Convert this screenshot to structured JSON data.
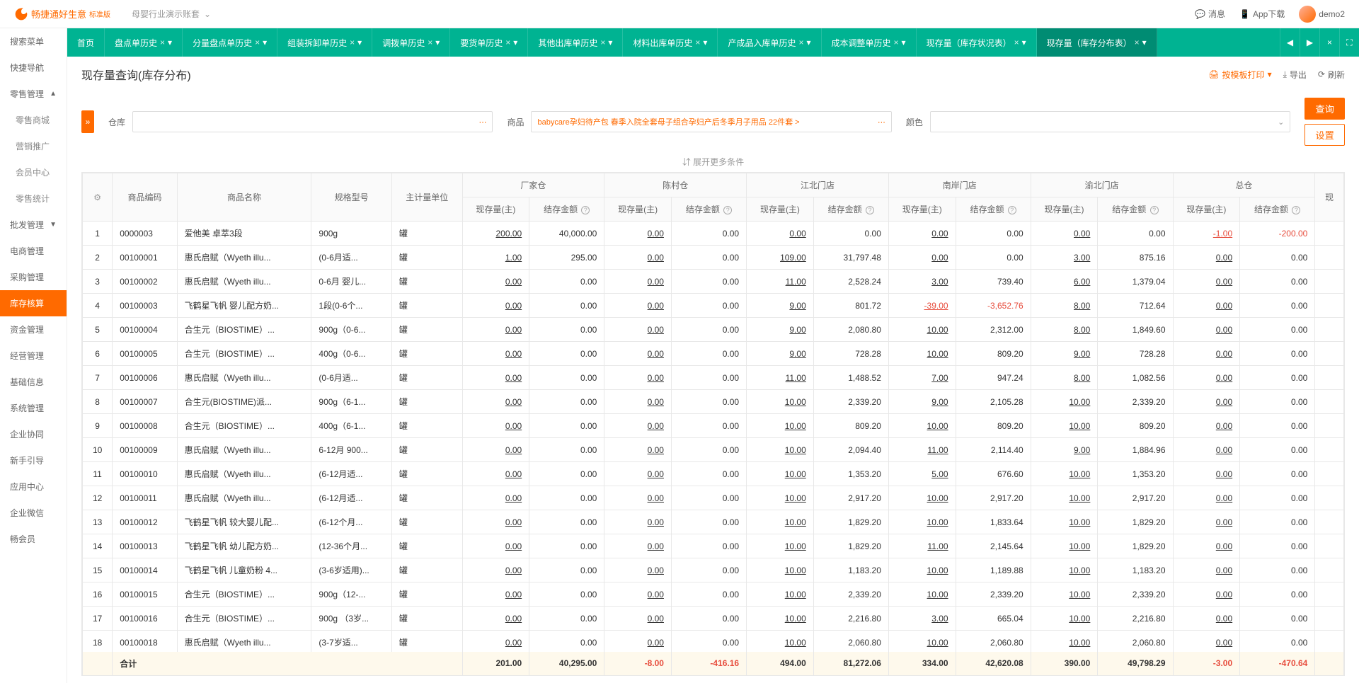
{
  "brand": "畅捷通好生意",
  "version": "标准版",
  "account_selector": "母婴行业演示账套",
  "top_right": {
    "msg": "消息",
    "app": "App下载",
    "user": "demo2"
  },
  "sidebar": [
    {
      "label": "搜索菜单"
    },
    {
      "label": "快捷导航"
    },
    {
      "label": "零售管理",
      "arrow": "▲"
    },
    {
      "label": "零售商城",
      "sub": true
    },
    {
      "label": "营销推广",
      "sub": true
    },
    {
      "label": "会员中心",
      "sub": true
    },
    {
      "label": "零售统计",
      "sub": true
    },
    {
      "label": "批发管理",
      "arrow": "▼"
    },
    {
      "label": "电商管理"
    },
    {
      "label": "采购管理"
    },
    {
      "label": "库存核算",
      "active": true
    },
    {
      "label": "资金管理"
    },
    {
      "label": "经营管理"
    },
    {
      "label": "基础信息"
    },
    {
      "label": "系统管理"
    },
    {
      "label": "企业协同"
    },
    {
      "label": "新手引导"
    },
    {
      "label": "应用中心"
    },
    {
      "label": "企业微信"
    },
    {
      "label": "畅会员"
    }
  ],
  "tabs": [
    {
      "label": "首页",
      "closable": false
    },
    {
      "label": "盘点单历史"
    },
    {
      "label": "分量盘点单历史"
    },
    {
      "label": "组装拆卸单历史"
    },
    {
      "label": "调拨单历史"
    },
    {
      "label": "要货单历史"
    },
    {
      "label": "其他出库单历史"
    },
    {
      "label": "材料出库单历史"
    },
    {
      "label": "产成品入库单历史"
    },
    {
      "label": "成本调整单历史"
    },
    {
      "label": "现存量（库存状况表）"
    },
    {
      "label": "现存量（库存分布表）",
      "active": true
    }
  ],
  "page_title": "现存量查询(库存分布)",
  "actions": {
    "print": "按模板打印",
    "export": "导出",
    "refresh": "刷新"
  },
  "filters": {
    "warehouse_label": "仓库",
    "product_label": "商品",
    "product_value": "babycare孕妇待产包 春季入院全套母子组合孕妇产后冬季月子用品 22件套 >",
    "color_label": "颜色",
    "query": "查询",
    "settings": "设置",
    "expand": "展开更多条件"
  },
  "warehouses": [
    "厂家仓",
    "陈村仓",
    "江北门店",
    "南岸门店",
    "渝北门店",
    "总仓"
  ],
  "col_qty": "现存量(主)",
  "col_amt": "结存金额",
  "col_qty_extra": "现",
  "headers": {
    "idx": "",
    "code": "商品编码",
    "name": "商品名称",
    "spec": "规格型号",
    "unit": "主计量单位"
  },
  "rows": [
    {
      "i": 1,
      "code": "0000003",
      "name": "爱他美 卓萃3段",
      "spec": "900g",
      "unit": "罐",
      "w": [
        [
          "200.00",
          "40,000.00"
        ],
        [
          "0.00",
          "0.00"
        ],
        [
          "0.00",
          "0.00"
        ],
        [
          "0.00",
          "0.00"
        ],
        [
          "0.00",
          "0.00"
        ],
        [
          "-1.00",
          "-200.00"
        ]
      ]
    },
    {
      "i": 2,
      "code": "00100001",
      "name": "惠氏启赋（Wyeth illu...",
      "spec": "(0-6月适...",
      "unit": "罐",
      "w": [
        [
          "1.00",
          "295.00"
        ],
        [
          "0.00",
          "0.00"
        ],
        [
          "109.00",
          "31,797.48"
        ],
        [
          "0.00",
          "0.00"
        ],
        [
          "3.00",
          "875.16"
        ],
        [
          "0.00",
          "0.00"
        ]
      ]
    },
    {
      "i": 3,
      "code": "00100002",
      "name": "惠氏启赋（Wyeth illu...",
      "spec": "0-6月 婴儿...",
      "unit": "罐",
      "w": [
        [
          "0.00",
          "0.00"
        ],
        [
          "0.00",
          "0.00"
        ],
        [
          "11.00",
          "2,528.24"
        ],
        [
          "3.00",
          "739.40"
        ],
        [
          "6.00",
          "1,379.04"
        ],
        [
          "0.00",
          "0.00"
        ]
      ]
    },
    {
      "i": 4,
      "code": "00100003",
      "name": "飞鹤星飞帆 婴儿配方奶...",
      "spec": "1段(0-6个...",
      "unit": "罐",
      "w": [
        [
          "0.00",
          "0.00"
        ],
        [
          "0.00",
          "0.00"
        ],
        [
          "9.00",
          "801.72"
        ],
        [
          "-39.00",
          "-3,652.76"
        ],
        [
          "8.00",
          "712.64"
        ],
        [
          "0.00",
          "0.00"
        ]
      ]
    },
    {
      "i": 5,
      "code": "00100004",
      "name": "合生元（BIOSTIME）...",
      "spec": "900g（0-6...",
      "unit": "罐",
      "w": [
        [
          "0.00",
          "0.00"
        ],
        [
          "0.00",
          "0.00"
        ],
        [
          "9.00",
          "2,080.80"
        ],
        [
          "10.00",
          "2,312.00"
        ],
        [
          "8.00",
          "1,849.60"
        ],
        [
          "0.00",
          "0.00"
        ]
      ]
    },
    {
      "i": 6,
      "code": "00100005",
      "name": "合生元（BIOSTIME）...",
      "spec": "400g（0-6...",
      "unit": "罐",
      "w": [
        [
          "0.00",
          "0.00"
        ],
        [
          "0.00",
          "0.00"
        ],
        [
          "9.00",
          "728.28"
        ],
        [
          "10.00",
          "809.20"
        ],
        [
          "9.00",
          "728.28"
        ],
        [
          "0.00",
          "0.00"
        ]
      ]
    },
    {
      "i": 7,
      "code": "00100006",
      "name": "惠氏启赋（Wyeth illu...",
      "spec": "(0-6月适...",
      "unit": "罐",
      "w": [
        [
          "0.00",
          "0.00"
        ],
        [
          "0.00",
          "0.00"
        ],
        [
          "11.00",
          "1,488.52"
        ],
        [
          "7.00",
          "947.24"
        ],
        [
          "8.00",
          "1,082.56"
        ],
        [
          "0.00",
          "0.00"
        ]
      ]
    },
    {
      "i": 8,
      "code": "00100007",
      "name": "合生元(BIOSTIME)派...",
      "spec": "900g（6-1...",
      "unit": "罐",
      "w": [
        [
          "0.00",
          "0.00"
        ],
        [
          "0.00",
          "0.00"
        ],
        [
          "10.00",
          "2,339.20"
        ],
        [
          "9.00",
          "2,105.28"
        ],
        [
          "10.00",
          "2,339.20"
        ],
        [
          "0.00",
          "0.00"
        ]
      ]
    },
    {
      "i": 9,
      "code": "00100008",
      "name": "合生元（BIOSTIME）...",
      "spec": "400g（6-1...",
      "unit": "罐",
      "w": [
        [
          "0.00",
          "0.00"
        ],
        [
          "0.00",
          "0.00"
        ],
        [
          "10.00",
          "809.20"
        ],
        [
          "10.00",
          "809.20"
        ],
        [
          "10.00",
          "809.20"
        ],
        [
          "0.00",
          "0.00"
        ]
      ]
    },
    {
      "i": 10,
      "code": "00100009",
      "name": "惠氏启赋（Wyeth illu...",
      "spec": "6-12月 900...",
      "unit": "罐",
      "w": [
        [
          "0.00",
          "0.00"
        ],
        [
          "0.00",
          "0.00"
        ],
        [
          "10.00",
          "2,094.40"
        ],
        [
          "11.00",
          "2,114.40"
        ],
        [
          "9.00",
          "1,884.96"
        ],
        [
          "0.00",
          "0.00"
        ]
      ]
    },
    {
      "i": 11,
      "code": "00100010",
      "name": "惠氏启赋（Wyeth illu...",
      "spec": "(6-12月适...",
      "unit": "罐",
      "w": [
        [
          "0.00",
          "0.00"
        ],
        [
          "0.00",
          "0.00"
        ],
        [
          "10.00",
          "1,353.20"
        ],
        [
          "5.00",
          "676.60"
        ],
        [
          "10.00",
          "1,353.20"
        ],
        [
          "0.00",
          "0.00"
        ]
      ]
    },
    {
      "i": 12,
      "code": "00100011",
      "name": "惠氏启赋（Wyeth illu...",
      "spec": "(6-12月适...",
      "unit": "罐",
      "w": [
        [
          "0.00",
          "0.00"
        ],
        [
          "0.00",
          "0.00"
        ],
        [
          "10.00",
          "2,917.20"
        ],
        [
          "10.00",
          "2,917.20"
        ],
        [
          "10.00",
          "2,917.20"
        ],
        [
          "0.00",
          "0.00"
        ]
      ]
    },
    {
      "i": 13,
      "code": "00100012",
      "name": "飞鹤星飞帆 较大婴儿配...",
      "spec": "(6-12个月...",
      "unit": "罐",
      "w": [
        [
          "0.00",
          "0.00"
        ],
        [
          "0.00",
          "0.00"
        ],
        [
          "10.00",
          "1,829.20"
        ],
        [
          "10.00",
          "1,833.64"
        ],
        [
          "10.00",
          "1,829.20"
        ],
        [
          "0.00",
          "0.00"
        ]
      ]
    },
    {
      "i": 14,
      "code": "00100013",
      "name": "飞鹤星飞帆 幼儿配方奶...",
      "spec": "(12-36个月...",
      "unit": "罐",
      "w": [
        [
          "0.00",
          "0.00"
        ],
        [
          "0.00",
          "0.00"
        ],
        [
          "10.00",
          "1,829.20"
        ],
        [
          "11.00",
          "2,145.64"
        ],
        [
          "10.00",
          "1,829.20"
        ],
        [
          "0.00",
          "0.00"
        ]
      ]
    },
    {
      "i": 15,
      "code": "00100014",
      "name": "飞鹤星飞帆 儿童奶粉 4...",
      "spec": "(3-6岁适用)...",
      "unit": "罐",
      "w": [
        [
          "0.00",
          "0.00"
        ],
        [
          "0.00",
          "0.00"
        ],
        [
          "10.00",
          "1,183.20"
        ],
        [
          "10.00",
          "1,189.88"
        ],
        [
          "10.00",
          "1,183.20"
        ],
        [
          "0.00",
          "0.00"
        ]
      ]
    },
    {
      "i": 16,
      "code": "00100015",
      "name": "合生元（BIOSTIME）...",
      "spec": "900g（12-...",
      "unit": "罐",
      "w": [
        [
          "0.00",
          "0.00"
        ],
        [
          "0.00",
          "0.00"
        ],
        [
          "10.00",
          "2,339.20"
        ],
        [
          "10.00",
          "2,339.20"
        ],
        [
          "10.00",
          "2,339.20"
        ],
        [
          "0.00",
          "0.00"
        ]
      ]
    },
    {
      "i": 17,
      "code": "00100016",
      "name": "合生元（BIOSTIME）...",
      "spec": "900g （3岁...",
      "unit": "罐",
      "w": [
        [
          "0.00",
          "0.00"
        ],
        [
          "0.00",
          "0.00"
        ],
        [
          "10.00",
          "2,216.80"
        ],
        [
          "3.00",
          "665.04"
        ],
        [
          "10.00",
          "2,216.80"
        ],
        [
          "0.00",
          "0.00"
        ]
      ]
    },
    {
      "i": 18,
      "code": "00100018",
      "name": "惠氏启赋（Wyeth illu...",
      "spec": "(3-7岁适...",
      "unit": "罐",
      "w": [
        [
          "0.00",
          "0.00"
        ],
        [
          "0.00",
          "0.00"
        ],
        [
          "10.00",
          "2,060.80"
        ],
        [
          "10.00",
          "2,060.80"
        ],
        [
          "10.00",
          "2,060.80"
        ],
        [
          "0.00",
          "0.00"
        ]
      ]
    }
  ],
  "total": {
    "label": "合计",
    "w": [
      [
        "201.00",
        "40,295.00"
      ],
      [
        "-8.00",
        "-416.16"
      ],
      [
        "494.00",
        "81,272.06"
      ],
      [
        "334.00",
        "42,620.08"
      ],
      [
        "390.00",
        "49,798.29"
      ],
      [
        "-3.00",
        "-470.64"
      ]
    ]
  }
}
